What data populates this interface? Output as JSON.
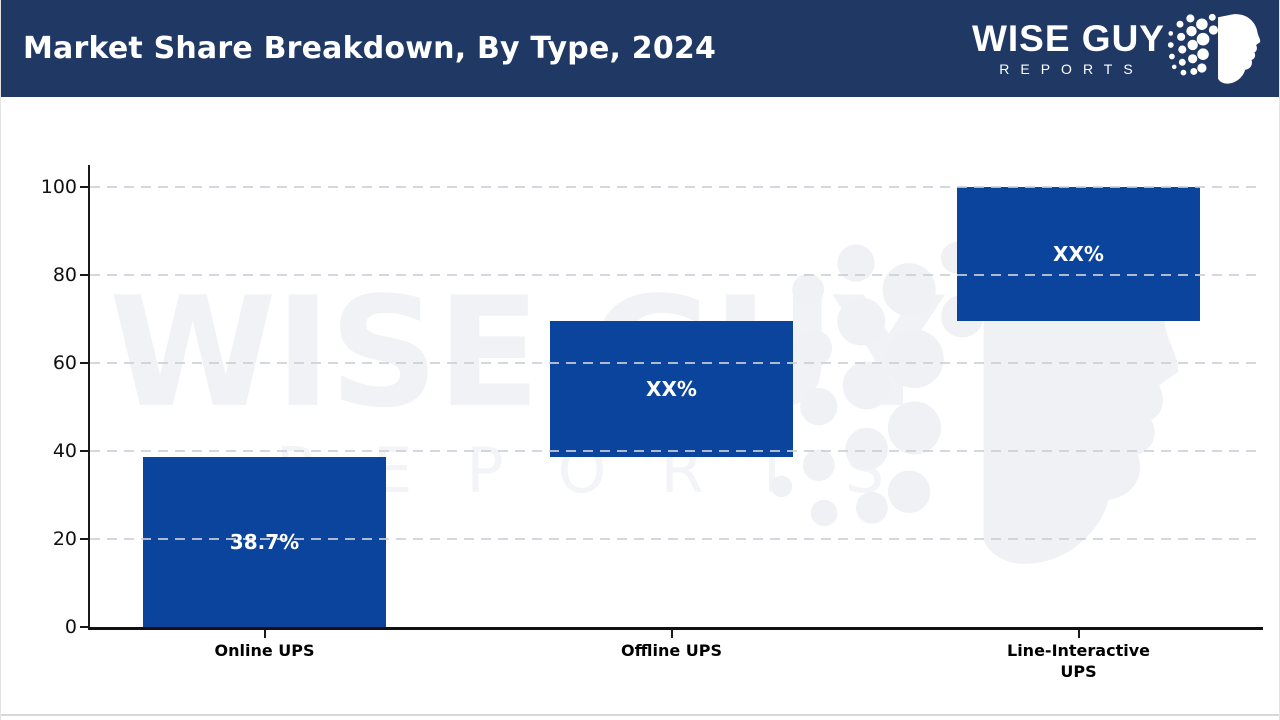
{
  "header": {
    "title": "Market Share Breakdown, By Type, 2024",
    "background": "#1f3864",
    "logo": {
      "line1": "WISE GUY",
      "line2": "REPORTS"
    }
  },
  "watermark": {
    "line1": "WISE GUY",
    "line2": "REPORTS"
  },
  "chart_data": {
    "type": "bar",
    "subtype": "floating-waterfall",
    "title": "Market Share Breakdown, By Type, 2024",
    "categories": [
      "Online UPS",
      "Offline UPS",
      "Line-Interactive\nUPS"
    ],
    "series": [
      {
        "name": "Market Share",
        "segments": [
          {
            "category": "Online UPS",
            "start": 0,
            "end": 38.7,
            "label": "38.7%"
          },
          {
            "category": "Offline UPS",
            "start": 38.7,
            "end": 69.6,
            "label": "XX%"
          },
          {
            "category": "Line-Interactive UPS",
            "start": 69.6,
            "end": 100,
            "label": "XX%"
          }
        ]
      }
    ],
    "xlabel": "",
    "ylabel": "",
    "ylim": [
      0,
      100
    ],
    "yticks": [
      0,
      20,
      40,
      60,
      80,
      100
    ],
    "grid": "horizontal-dashed",
    "legend": "none",
    "bar_color": "#0a449d",
    "value_label_color": "#ffffff",
    "axis_color": "#1a1a1a",
    "gridline_color": "#cbd0d8"
  }
}
